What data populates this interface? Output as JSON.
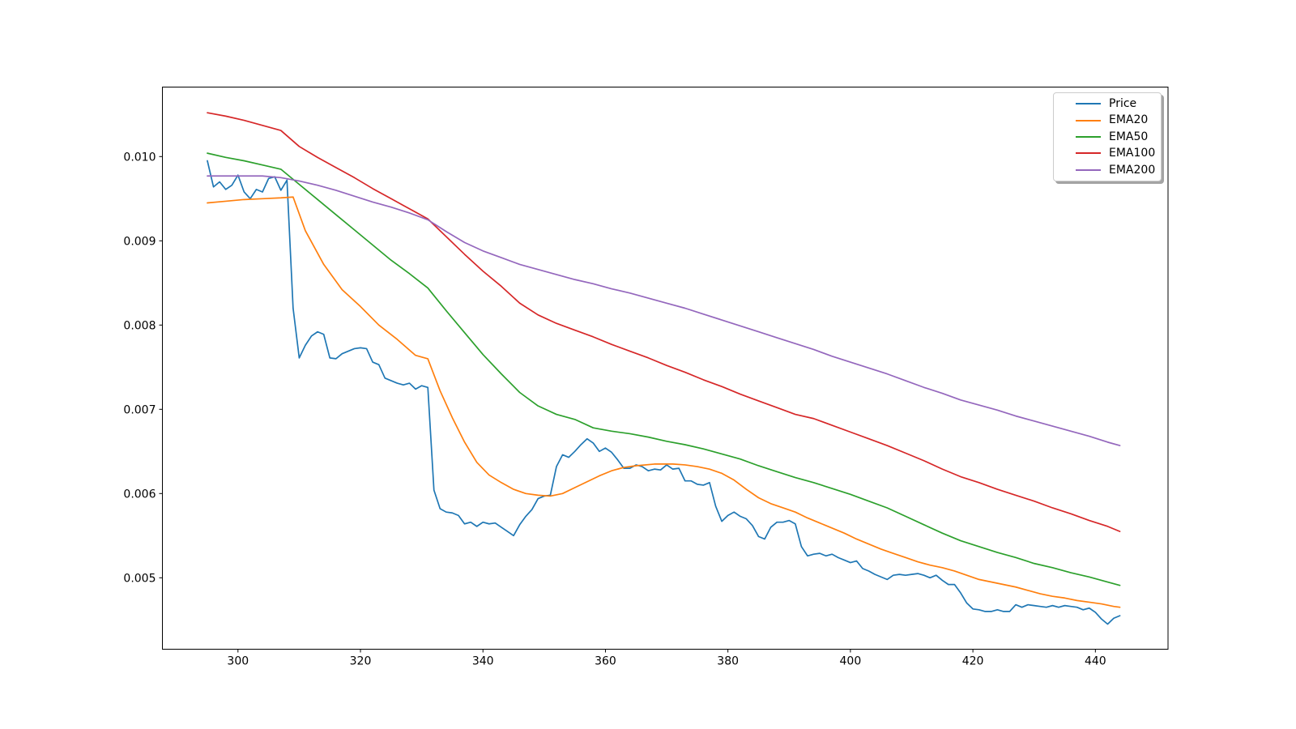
{
  "figure": {
    "background": "#ffffff",
    "spine_color": "#000000",
    "tick_label_color": "#000000",
    "tick_font_size": 14
  },
  "legend": {
    "position": "upper right",
    "entries": [
      {
        "label": "Price",
        "color": "#1f77b4"
      },
      {
        "label": "EMA20",
        "color": "#ff7f0e"
      },
      {
        "label": "EMA50",
        "color": "#2ca02c"
      },
      {
        "label": "EMA100",
        "color": "#d62728"
      },
      {
        "label": "EMA200",
        "color": "#9467bd"
      }
    ]
  },
  "chart_data": {
    "type": "line",
    "title": "",
    "xlabel": "",
    "ylabel": "",
    "grid": false,
    "legend_position": "upper right",
    "xlim": [
      287.66,
      451.86
    ],
    "ylim": [
      0.004152,
      0.010825
    ],
    "x_ticks": [
      300,
      320,
      340,
      360,
      380,
      400,
      420,
      440
    ],
    "y_ticks": [
      0.005,
      0.006,
      0.007,
      0.008,
      0.009,
      0.01
    ],
    "y_tick_labels": [
      "0.005",
      "0.006",
      "0.007",
      "0.008",
      "0.009",
      "0.010"
    ],
    "series": [
      {
        "name": "Price",
        "color": "#1f77b4",
        "x_start": 295,
        "x_step": 1,
        "values": [
          0.00995,
          0.00964,
          0.0097,
          0.00961,
          0.00966,
          0.00978,
          0.00958,
          0.0095,
          0.00961,
          0.00958,
          0.00974,
          0.00976,
          0.0096,
          0.00972,
          0.0082,
          0.00761,
          0.00776,
          0.00787,
          0.00792,
          0.00789,
          0.00761,
          0.0076,
          0.00766,
          0.00769,
          0.00772,
          0.00773,
          0.00772,
          0.00756,
          0.00753,
          0.00737,
          0.00734,
          0.00731,
          0.00729,
          0.00731,
          0.00724,
          0.00728,
          0.00726,
          0.00604,
          0.00582,
          0.00578,
          0.00577,
          0.00574,
          0.00564,
          0.00566,
          0.00561,
          0.00566,
          0.00564,
          0.00565,
          0.0056,
          0.00555,
          0.0055,
          0.00563,
          0.00573,
          0.00581,
          0.00594,
          0.00597,
          0.00598,
          0.00632,
          0.00646,
          0.00643,
          0.0065,
          0.00658,
          0.00665,
          0.0066,
          0.0065,
          0.00654,
          0.00649,
          0.0064,
          0.0063,
          0.0063,
          0.00634,
          0.00632,
          0.00627,
          0.00629,
          0.00628,
          0.00634,
          0.00629,
          0.0063,
          0.00615,
          0.00615,
          0.00611,
          0.0061,
          0.00613,
          0.00585,
          0.00567,
          0.00574,
          0.00578,
          0.00573,
          0.0057,
          0.00562,
          0.00549,
          0.00546,
          0.0056,
          0.00566,
          0.00566,
          0.00568,
          0.00564,
          0.00537,
          0.00526,
          0.00528,
          0.00529,
          0.00526,
          0.00528,
          0.00524,
          0.00521,
          0.00518,
          0.0052,
          0.00511,
          0.00508,
          0.00504,
          0.00501,
          0.00498,
          0.00503,
          0.00504,
          0.00503,
          0.00504,
          0.00505,
          0.00503,
          0.005,
          0.00503,
          0.00497,
          0.00492,
          0.00492,
          0.00482,
          0.0047,
          0.00463,
          0.00462,
          0.0046,
          0.0046,
          0.00462,
          0.0046,
          0.0046,
          0.00468,
          0.00465,
          0.00468,
          0.00467,
          0.00466,
          0.00465,
          0.00467,
          0.00465,
          0.00467,
          0.00466,
          0.00465,
          0.00462,
          0.00464,
          0.00459,
          0.00451,
          0.00445,
          0.00452,
          0.00455
        ]
      },
      {
        "name": "EMA20",
        "color": "#ff7f0e",
        "points": [
          [
            295,
            0.00945
          ],
          [
            298,
            0.00947
          ],
          [
            301,
            0.00949
          ],
          [
            304,
            0.0095
          ],
          [
            307,
            0.00951
          ],
          [
            309,
            0.00952
          ],
          [
            311,
            0.00912
          ],
          [
            314,
            0.00872
          ],
          [
            317,
            0.00842
          ],
          [
            320,
            0.00822
          ],
          [
            323,
            0.008
          ],
          [
            326,
            0.00783
          ],
          [
            329,
            0.00764
          ],
          [
            331,
            0.0076
          ],
          [
            333,
            0.00722
          ],
          [
            335,
            0.0069
          ],
          [
            337,
            0.00661
          ],
          [
            339,
            0.00637
          ],
          [
            341,
            0.00622
          ],
          [
            343,
            0.00613
          ],
          [
            345,
            0.00605
          ],
          [
            347,
            0.006
          ],
          [
            349,
            0.00598
          ],
          [
            351,
            0.00597
          ],
          [
            353,
            0.006
          ],
          [
            355,
            0.00607
          ],
          [
            357,
            0.00614
          ],
          [
            359,
            0.00621
          ],
          [
            361,
            0.00627
          ],
          [
            363,
            0.00631
          ],
          [
            365,
            0.00633
          ],
          [
            368,
            0.00635
          ],
          [
            371,
            0.00635
          ],
          [
            373,
            0.00634
          ],
          [
            375,
            0.00632
          ],
          [
            377,
            0.00629
          ],
          [
            379,
            0.00624
          ],
          [
            381,
            0.00616
          ],
          [
            383,
            0.00605
          ],
          [
            385,
            0.00595
          ],
          [
            387,
            0.00588
          ],
          [
            389,
            0.00583
          ],
          [
            391,
            0.00578
          ],
          [
            393,
            0.00571
          ],
          [
            395,
            0.00565
          ],
          [
            397,
            0.00559
          ],
          [
            399,
            0.00553
          ],
          [
            401,
            0.00546
          ],
          [
            403,
            0.0054
          ],
          [
            405,
            0.00534
          ],
          [
            407,
            0.00529
          ],
          [
            409,
            0.00524
          ],
          [
            411,
            0.00519
          ],
          [
            413,
            0.00515
          ],
          [
            415,
            0.00512
          ],
          [
            417,
            0.00508
          ],
          [
            419,
            0.00503
          ],
          [
            421,
            0.00498
          ],
          [
            423,
            0.00495
          ],
          [
            425,
            0.00492
          ],
          [
            427,
            0.00489
          ],
          [
            429,
            0.00485
          ],
          [
            431,
            0.00481
          ],
          [
            433,
            0.00478
          ],
          [
            435,
            0.00476
          ],
          [
            437,
            0.00473
          ],
          [
            439,
            0.00471
          ],
          [
            441,
            0.00469
          ],
          [
            443,
            0.00466
          ],
          [
            444,
            0.00465
          ]
        ]
      },
      {
        "name": "EMA50",
        "color": "#2ca02c",
        "points": [
          [
            295,
            0.01004
          ],
          [
            298,
            0.00999
          ],
          [
            301,
            0.00995
          ],
          [
            304,
            0.0099
          ],
          [
            307,
            0.00985
          ],
          [
            310,
            0.00967
          ],
          [
            313,
            0.00949
          ],
          [
            316,
            0.00931
          ],
          [
            319,
            0.00913
          ],
          [
            322,
            0.00895
          ],
          [
            325,
            0.00877
          ],
          [
            328,
            0.00861
          ],
          [
            331,
            0.00844
          ],
          [
            334,
            0.00817
          ],
          [
            337,
            0.00791
          ],
          [
            340,
            0.00765
          ],
          [
            343,
            0.00742
          ],
          [
            346,
            0.0072
          ],
          [
            349,
            0.00704
          ],
          [
            352,
            0.00694
          ],
          [
            355,
            0.00688
          ],
          [
            358,
            0.00678
          ],
          [
            361,
            0.00674
          ],
          [
            364,
            0.00671
          ],
          [
            367,
            0.00667
          ],
          [
            370,
            0.00662
          ],
          [
            373,
            0.00658
          ],
          [
            376,
            0.00653
          ],
          [
            379,
            0.00647
          ],
          [
            382,
            0.00641
          ],
          [
            385,
            0.00633
          ],
          [
            388,
            0.00626
          ],
          [
            391,
            0.00619
          ],
          [
            394,
            0.00613
          ],
          [
            397,
            0.00606
          ],
          [
            400,
            0.00599
          ],
          [
            403,
            0.00591
          ],
          [
            406,
            0.00583
          ],
          [
            409,
            0.00573
          ],
          [
            412,
            0.00563
          ],
          [
            415,
            0.00553
          ],
          [
            418,
            0.00544
          ],
          [
            421,
            0.00537
          ],
          [
            424,
            0.0053
          ],
          [
            427,
            0.00524
          ],
          [
            430,
            0.00517
          ],
          [
            433,
            0.00512
          ],
          [
            436,
            0.00506
          ],
          [
            439,
            0.00501
          ],
          [
            442,
            0.00495
          ],
          [
            444,
            0.00491
          ]
        ]
      },
      {
        "name": "EMA100",
        "color": "#d62728",
        "points": [
          [
            295,
            0.01052
          ],
          [
            298,
            0.01048
          ],
          [
            301,
            0.01043
          ],
          [
            304,
            0.01037
          ],
          [
            307,
            0.01031
          ],
          [
            310,
            0.01012
          ],
          [
            313,
            0.00999
          ],
          [
            316,
            0.00987
          ],
          [
            319,
            0.00975
          ],
          [
            322,
            0.00962
          ],
          [
            325,
            0.0095
          ],
          [
            328,
            0.00938
          ],
          [
            331,
            0.00926
          ],
          [
            334,
            0.00905
          ],
          [
            337,
            0.00884
          ],
          [
            340,
            0.00864
          ],
          [
            343,
            0.00846
          ],
          [
            346,
            0.00826
          ],
          [
            349,
            0.00812
          ],
          [
            352,
            0.00802
          ],
          [
            355,
            0.00794
          ],
          [
            358,
            0.00786
          ],
          [
            361,
            0.00777
          ],
          [
            364,
            0.00769
          ],
          [
            367,
            0.00761
          ],
          [
            370,
            0.00752
          ],
          [
            373,
            0.00744
          ],
          [
            376,
            0.00735
          ],
          [
            379,
            0.00727
          ],
          [
            382,
            0.00718
          ],
          [
            385,
            0.0071
          ],
          [
            388,
            0.00702
          ],
          [
            391,
            0.00694
          ],
          [
            394,
            0.00689
          ],
          [
            397,
            0.00681
          ],
          [
            400,
            0.00673
          ],
          [
            403,
            0.00665
          ],
          [
            406,
            0.00657
          ],
          [
            409,
            0.00648
          ],
          [
            412,
            0.00639
          ],
          [
            415,
            0.00629
          ],
          [
            418,
            0.0062
          ],
          [
            421,
            0.00613
          ],
          [
            424,
            0.00605
          ],
          [
            427,
            0.00598
          ],
          [
            430,
            0.00591
          ],
          [
            433,
            0.00583
          ],
          [
            436,
            0.00576
          ],
          [
            439,
            0.00568
          ],
          [
            442,
            0.00561
          ],
          [
            444,
            0.00555
          ]
        ]
      },
      {
        "name": "EMA200",
        "color": "#9467bd",
        "points": [
          [
            295,
            0.00977
          ],
          [
            298,
            0.00977
          ],
          [
            301,
            0.00977
          ],
          [
            304,
            0.00977
          ],
          [
            307,
            0.00975
          ],
          [
            310,
            0.00971
          ],
          [
            313,
            0.00966
          ],
          [
            316,
            0.0096
          ],
          [
            319,
            0.00953
          ],
          [
            322,
            0.00946
          ],
          [
            325,
            0.0094
          ],
          [
            328,
            0.00933
          ],
          [
            331,
            0.00925
          ],
          [
            334,
            0.00911
          ],
          [
            337,
            0.00898
          ],
          [
            340,
            0.00888
          ],
          [
            343,
            0.0088
          ],
          [
            346,
            0.00872
          ],
          [
            349,
            0.00866
          ],
          [
            352,
            0.0086
          ],
          [
            355,
            0.00854
          ],
          [
            358,
            0.00849
          ],
          [
            361,
            0.00843
          ],
          [
            364,
            0.00838
          ],
          [
            367,
            0.00832
          ],
          [
            370,
            0.00826
          ],
          [
            373,
            0.0082
          ],
          [
            376,
            0.00813
          ],
          [
            379,
            0.00806
          ],
          [
            382,
            0.00799
          ],
          [
            385,
            0.00792
          ],
          [
            388,
            0.00785
          ],
          [
            391,
            0.00778
          ],
          [
            394,
            0.00771
          ],
          [
            397,
            0.00763
          ],
          [
            400,
            0.00756
          ],
          [
            403,
            0.00749
          ],
          [
            406,
            0.00742
          ],
          [
            409,
            0.00734
          ],
          [
            412,
            0.00726
          ],
          [
            415,
            0.00719
          ],
          [
            418,
            0.00711
          ],
          [
            421,
            0.00705
          ],
          [
            424,
            0.00699
          ],
          [
            427,
            0.00692
          ],
          [
            430,
            0.00686
          ],
          [
            433,
            0.0068
          ],
          [
            436,
            0.00674
          ],
          [
            439,
            0.00668
          ],
          [
            442,
            0.00661
          ],
          [
            444,
            0.00657
          ]
        ]
      }
    ]
  }
}
